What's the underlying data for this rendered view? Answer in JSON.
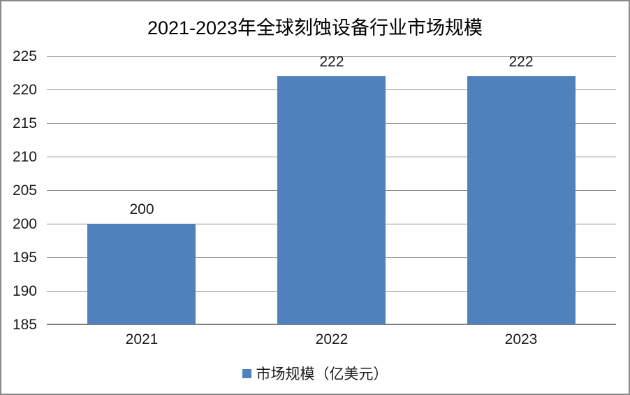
{
  "page": {
    "background_color": "#FFFFFF",
    "frame_border_color": "#898989"
  },
  "chart_data": {
    "type": "bar",
    "title": "2021-2023年全球刻蚀设备行业市场规模",
    "categories": [
      "2021",
      "2022",
      "2023"
    ],
    "values": [
      200,
      222,
      222
    ],
    "data_labels": [
      "200",
      "222",
      "222"
    ],
    "series_name": "市场规模（亿美元）",
    "xlabel": "",
    "ylabel": "",
    "ylim": [
      185,
      225
    ],
    "ytick_interval": 5,
    "yticks": [
      225,
      220,
      215,
      210,
      205,
      200,
      195,
      190,
      185
    ],
    "grid": true,
    "legend_position": "bottom",
    "bar_color": "#4F81BD",
    "gridline_color": "#8E8E8E",
    "axis_line_color": "#7F7F7F",
    "text_color": "#1A1A1A"
  }
}
